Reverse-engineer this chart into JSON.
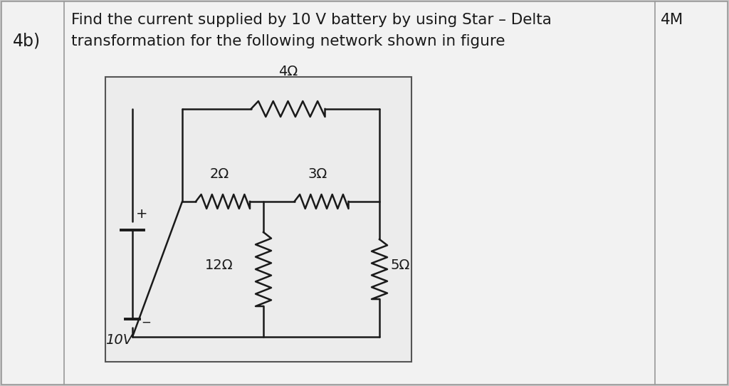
{
  "title_label": "4b)",
  "title_text": "Find the current supplied by 10 V battery by using Star – Delta\ntransformation for the following network shown in figure",
  "right_label": "4M",
  "bg_color": "#c8c8c8",
  "cell_bg": "#f2f2f2",
  "circuit_bg": "#efefef",
  "border_color": "#999999",
  "wire_color": "#1a1a1a",
  "font_color": "#1a1a1a",
  "resistors": {
    "R_top": "4Ω",
    "R_mid_left": "2Ω",
    "R_mid_right": "3Ω",
    "R_bot_left": "12Ω",
    "R_bot_right": "5Ω"
  },
  "battery_label": "10V"
}
